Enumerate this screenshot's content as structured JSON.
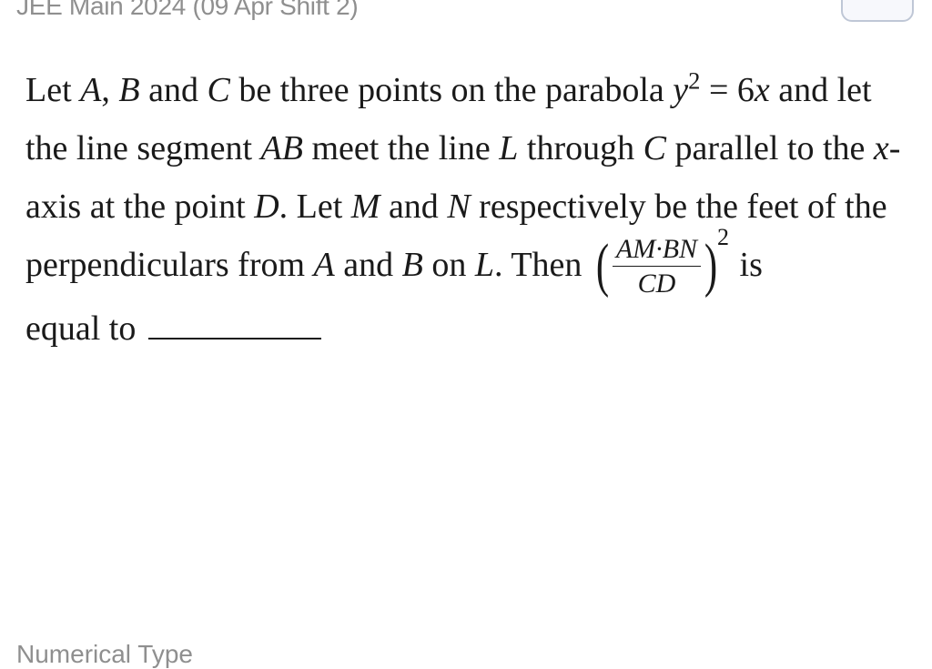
{
  "header": "JEE Main 2024 (09 Apr Shift 2)",
  "q": {
    "t1": "Let ",
    "A": "A",
    "c1": ", ",
    "B": "B",
    "t2": " and ",
    "C": "C",
    "t3": " be three points on the parabola ",
    "y": "y",
    "sq": "2",
    "eq": " = 6",
    "x": "x",
    "t4": " and let the line segment ",
    "AB": "AB",
    "t5": " meet the line ",
    "L": "L",
    "t6": " through ",
    "C2": "C",
    "t7": " parallel to the ",
    "xax": "x",
    "t8": "-axis at the point ",
    "D": "D",
    "t9": ". Let ",
    "M": "M",
    "t10": " and ",
    "N": "N",
    "t11": " respectively be the feet of the perpendiculars from ",
    "A2": "A",
    "t12": " and ",
    "B2": "B",
    "t13": " on ",
    "L2": "L",
    "t14": ". Then ",
    "num": "AM·BN",
    "den": "CD",
    "exp": "2",
    "t15": " is equal to "
  },
  "footer": "Numerical Type",
  "colors": {
    "text": "#1a1a1a",
    "muted": "#8f8f8f",
    "bg": "#ffffff",
    "pill_border": "#bfc7d6"
  },
  "typography": {
    "header_fontsize": 28,
    "body_fontsize": 38,
    "frac_fontsize": 30
  }
}
